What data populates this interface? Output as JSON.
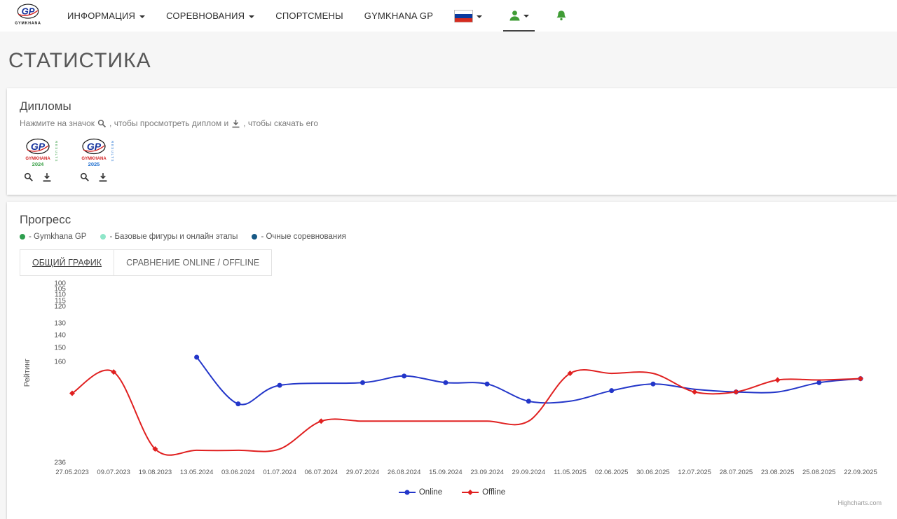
{
  "nav": {
    "logo": {
      "text": "GP",
      "sub": "GYMKHANA"
    },
    "items": [
      {
        "label": "ИНФОРМАЦИЯ",
        "caret": true
      },
      {
        "label": "СОРЕВНОВАНИЯ",
        "caret": true
      },
      {
        "label": "СПОРТСМЕНЫ",
        "caret": false
      },
      {
        "label": "GYMKHANA GP",
        "caret": false
      }
    ]
  },
  "page": {
    "title": "СТАТИСТИКА"
  },
  "diplomas": {
    "title": "Дипломы",
    "subtitle_part1": "Нажмите на значок",
    "subtitle_part2": ", чтобы просмотреть диплом и",
    "subtitle_part3": ", чтобы скачать его",
    "items": [
      {
        "brand": "GYMKHANA",
        "year": "2024",
        "accent": "#3aa047",
        "side": "RESULTS"
      },
      {
        "brand": "GYMKHANA",
        "year": "2025",
        "accent": "#1e6fd0",
        "side": "RESULTS"
      }
    ]
  },
  "progress": {
    "title": "Прогресс",
    "legend": [
      {
        "color": "#2e9e4e",
        "label": "- Gymkhana GP"
      },
      {
        "color": "#8fe6c9",
        "label": "- Базовые фигуры и онлайн этапы"
      },
      {
        "color": "#175985",
        "label": "- Очные соревнования"
      }
    ],
    "tabs": [
      {
        "label": "ОБЩИЙ ГРАФИК",
        "active": true
      },
      {
        "label": "СРАВНЕНИЕ ONLINE / OFFLINE",
        "active": false
      }
    ]
  },
  "chart_data": {
    "type": "line",
    "title": "",
    "xlabel": "",
    "ylabel": "Рейтинг",
    "y_axis_reversed": true,
    "point_format": "[categoryIndex, rating, markerVisible]",
    "y_ticks": [
      {
        "value": 100,
        "pos": 0
      },
      {
        "value": 105,
        "pos": 8
      },
      {
        "value": 110,
        "pos": 16
      },
      {
        "value": 115,
        "pos": 25
      },
      {
        "value": 120,
        "pos": 33
      },
      {
        "value": 130,
        "pos": 57
      },
      {
        "value": 140,
        "pos": 74
      },
      {
        "value": 150,
        "pos": 92
      },
      {
        "value": 160,
        "pos": 112
      },
      {
        "value": 236,
        "pos": 256
      }
    ],
    "categories": [
      "27.05.2023",
      "09.07.2023",
      "19.08.2023",
      "13.05.2024",
      "03.06.2024",
      "01.07.2024",
      "06.07.2024",
      "29.07.2024",
      "26.08.2024",
      "15.09.2024",
      "23.09.2024",
      "29.09.2024",
      "11.05.2025",
      "02.06.2025",
      "30.06.2025",
      "12.07.2025",
      "28.07.2025",
      "23.08.2025",
      "25.08.2025",
      "22.09.2025"
    ],
    "series": [
      {
        "name": "Online",
        "color": "#2336c9",
        "marker": "circle",
        "points": [
          [
            3,
            157,
            1
          ],
          [
            4,
            192,
            1
          ],
          [
            5,
            178,
            1
          ],
          [
            7,
            176,
            1
          ],
          [
            8,
            171,
            1
          ],
          [
            9,
            176,
            1
          ],
          [
            10,
            177,
            1
          ],
          [
            11,
            190,
            1
          ],
          [
            12,
            190,
            0
          ],
          [
            13,
            182,
            1
          ],
          [
            14,
            177,
            1
          ],
          [
            15,
            181,
            0
          ],
          [
            16,
            183,
            1
          ],
          [
            17,
            183,
            0
          ],
          [
            18,
            176,
            1
          ],
          [
            19,
            173,
            1
          ]
        ]
      },
      {
        "name": "Offline",
        "color": "#e02020",
        "marker": "diamond",
        "points": [
          [
            0,
            184,
            1
          ],
          [
            1,
            168,
            1
          ],
          [
            2,
            226,
            1
          ],
          [
            3,
            227,
            0
          ],
          [
            4,
            227,
            0
          ],
          [
            5,
            226,
            0
          ],
          [
            6,
            205,
            1
          ],
          [
            7,
            205,
            0
          ],
          [
            8,
            205,
            0
          ],
          [
            9,
            205,
            0
          ],
          [
            10,
            205,
            0
          ],
          [
            11,
            205,
            0
          ],
          [
            12,
            169,
            1
          ],
          [
            13,
            169,
            0
          ],
          [
            14,
            169,
            0
          ],
          [
            15,
            183,
            1
          ],
          [
            16,
            183,
            1
          ],
          [
            17,
            174,
            1
          ],
          [
            18,
            174,
            0
          ],
          [
            19,
            173,
            1
          ]
        ]
      }
    ],
    "legend_position": "bottom",
    "grid": false,
    "credits": "Highcharts.com"
  }
}
